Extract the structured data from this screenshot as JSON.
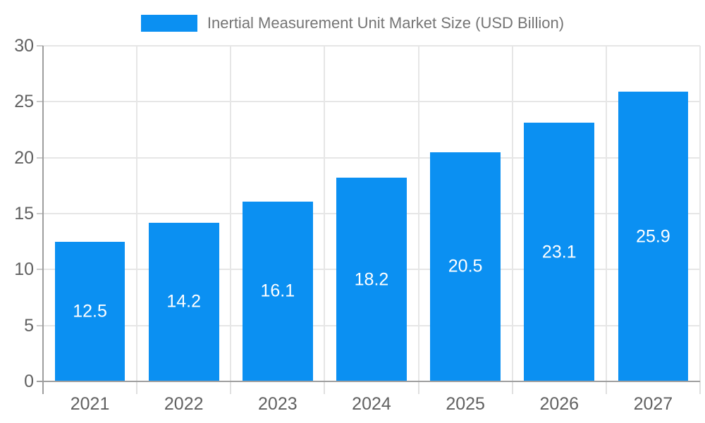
{
  "chart_data": {
    "type": "bar",
    "title": "Inertial Measurement Unit Market Size (USD Billion)",
    "legend_entries": [
      "Inertial Measurement Unit Market Size (USD Billion)"
    ],
    "legend_position": "top-center",
    "categories": [
      "2021",
      "2022",
      "2023",
      "2024",
      "2025",
      "2026",
      "2027"
    ],
    "values": [
      12.5,
      14.2,
      16.1,
      18.2,
      20.5,
      23.1,
      25.9
    ],
    "value_labels": [
      "12.5",
      "14.2",
      "16.1",
      "18.2",
      "20.5",
      "23.1",
      "25.9"
    ],
    "xlabel": "",
    "ylabel": "",
    "ylim": [
      0,
      30
    ],
    "yticks": [
      0,
      5,
      10,
      15,
      20,
      25,
      30
    ],
    "grid": true,
    "colors": {
      "bar": "#0b90f2",
      "value_label": "#ffffff",
      "axis_label": "#616161",
      "legend_label": "#757575",
      "grid_line": "#e6e6e6",
      "axis_line": "#9e9e9e",
      "y_tick": "#c9c9c9",
      "x_tick": "#e0e0e0",
      "background": "#ffffff"
    }
  }
}
